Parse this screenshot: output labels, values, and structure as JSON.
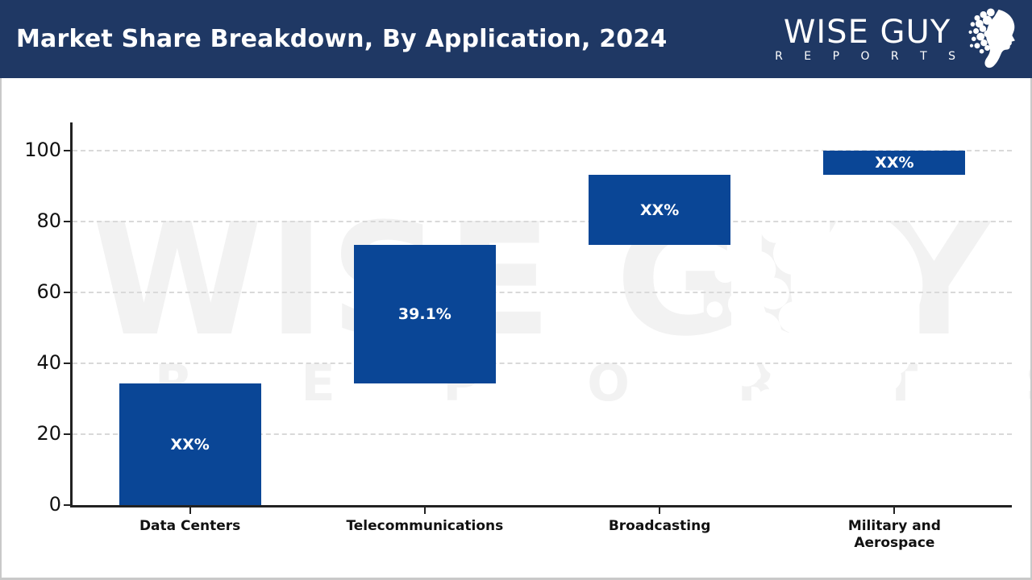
{
  "header": {
    "title": "Market Share Breakdown, By Application, 2024",
    "bg_color": "#1f3864",
    "logo": {
      "name": "WISE GUY REPORTS",
      "line1": "WISE GUY",
      "line2": "R E P O R T S"
    }
  },
  "watermark": {
    "line1": "WISE GUY",
    "line2": "R E P O R T S"
  },
  "chart_data": {
    "type": "bar",
    "subtype": "waterfall",
    "title": "Market Share Breakdown, By Application, 2024",
    "categories": [
      "Data Centers",
      "Telecommunications",
      "Broadcasting",
      "Military and Aerospace"
    ],
    "series": [
      {
        "name": "Market share (%)",
        "segments": [
          {
            "category": "Data Centers",
            "start": 0,
            "end": 34.3,
            "label": "XX%"
          },
          {
            "category": "Telecommunications",
            "start": 34.3,
            "end": 73.4,
            "label": "39.1%"
          },
          {
            "category": "Broadcasting",
            "start": 73.4,
            "end": 93.1,
            "label": "XX%"
          },
          {
            "category": "Military and Aerospace",
            "start": 93.1,
            "end": 100,
            "label": "XX%"
          }
        ]
      }
    ],
    "bar_color": "#0a4696",
    "bar_label_color": "#ffffff",
    "xlabel": "",
    "ylabel": "",
    "ylim": [
      0,
      100
    ],
    "yticks": [
      0,
      20,
      40,
      60,
      80,
      100
    ],
    "grid": "horizontal-dashed",
    "legend": "none"
  }
}
